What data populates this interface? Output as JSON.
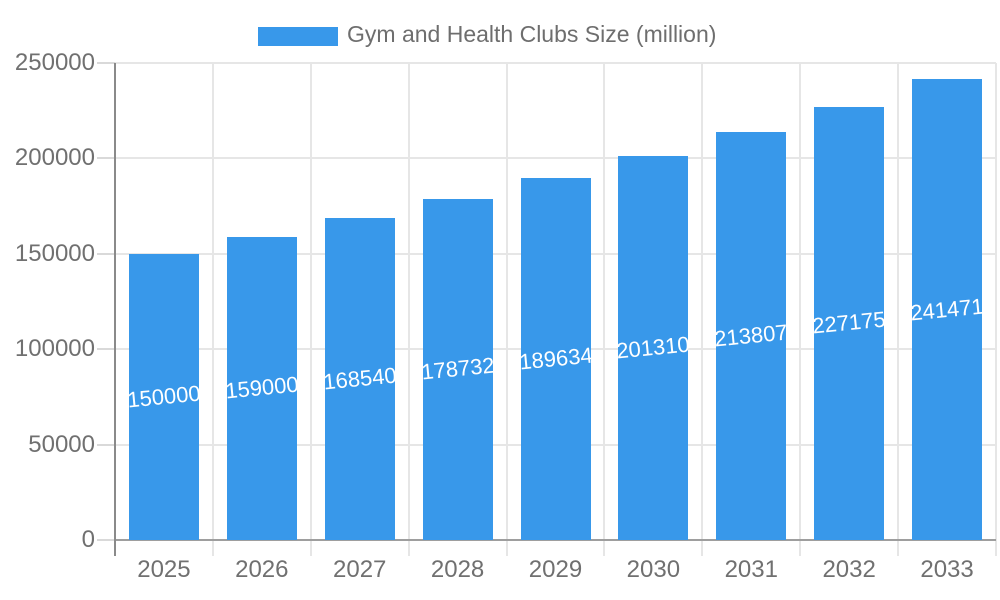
{
  "chart_data": {
    "type": "bar",
    "title": "Gym and Health Clubs Size (million)",
    "legend_position": "top",
    "categories": [
      "2025",
      "2026",
      "2027",
      "2028",
      "2029",
      "2030",
      "2031",
      "2032",
      "2033"
    ],
    "series": [
      {
        "name": "Gym and Health Clubs Size (million)",
        "values": [
          150000,
          159000,
          168540,
          178732,
          189634,
          201310,
          213807,
          227175,
          241471
        ]
      }
    ],
    "bar_value_labels": [
      "150000",
      "159000",
      "168540",
      "178732",
      "189634",
      "201310",
      "213807",
      "227175",
      "241471"
    ],
    "xlabel": "",
    "ylabel": "",
    "ylim": [
      0,
      250000
    ],
    "yticks": [
      0,
      50000,
      100000,
      150000,
      200000,
      250000
    ],
    "ytick_labels": [
      "0",
      "50000",
      "100000",
      "150000",
      "200000",
      "250000"
    ],
    "grid": true
  },
  "style": {
    "background": "#ffffff",
    "bar_color": "#3898ea",
    "axis_text_color": "#707070",
    "legend_text_color": "#6e6e6e",
    "annotation_text_color": "#ffffff",
    "gridline_color": "#e6e6e6",
    "tick_color": "#d9d9d9",
    "axis_line_color": "#8a8a8a",
    "baseline_color": "#9e9e9e"
  }
}
